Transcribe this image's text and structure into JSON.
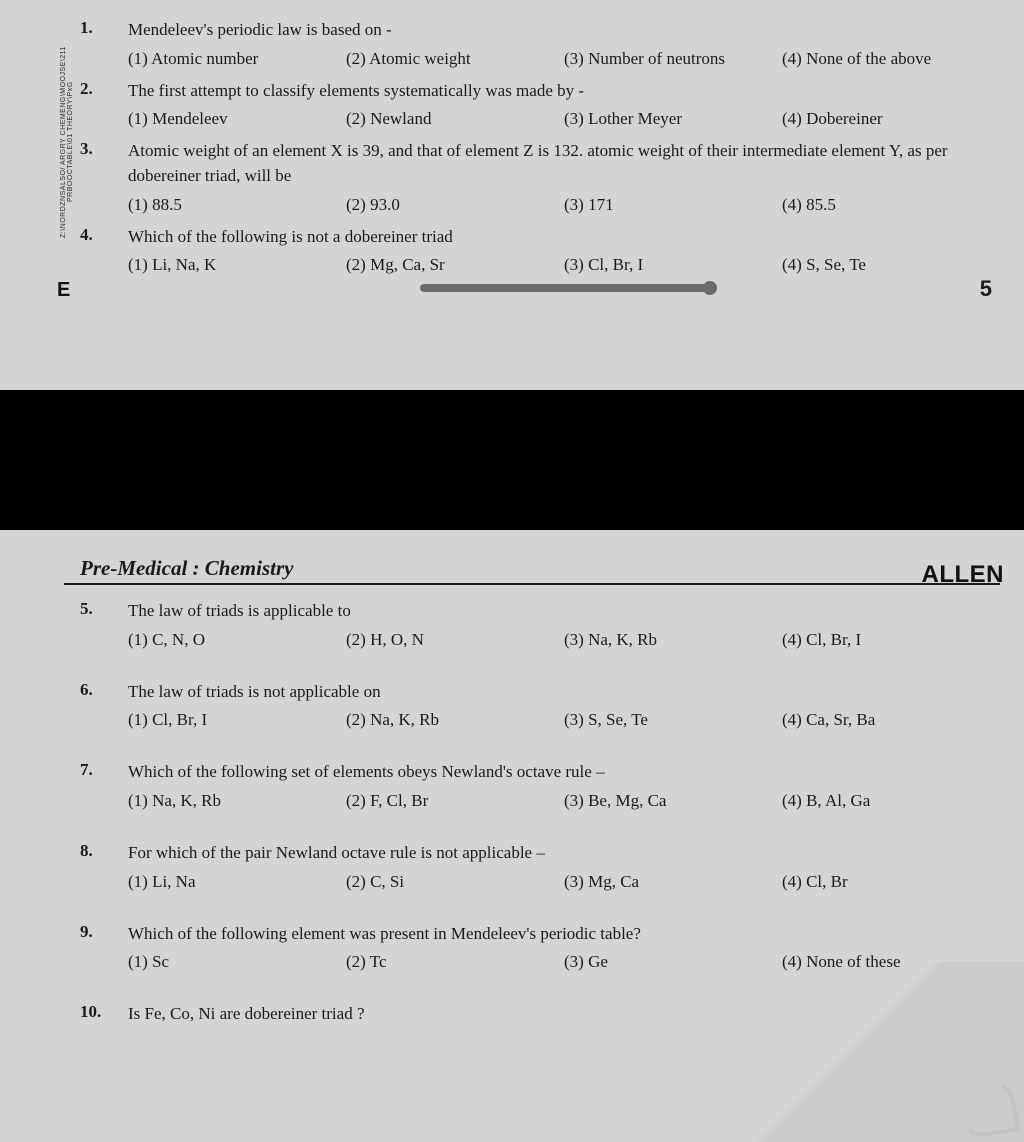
{
  "sideLabel": "Z:\\NORDZNSALSO/ ARGRY CHEMENG\\MOOJSE\\211 PRBOOCTABLE\\01 THEORY\\PxG",
  "letterE": "E",
  "pageNumber5": "5",
  "sectionTitle": "Pre-Medical : Chemistry",
  "brand": "ALLEN",
  "topQuestions": [
    {
      "num": "1.",
      "text": "Mendeleev's periodic law is based on -",
      "options": [
        "(1) Atomic number",
        "(2) Atomic weight",
        "(3) Number of neutrons",
        "(4) None of the above"
      ]
    },
    {
      "num": "2.",
      "text": "The first attempt to classify elements systematically was made by -",
      "options": [
        "(1) Mendeleev",
        "(2) Newland",
        "(3) Lother Meyer",
        "(4) Dobereiner"
      ]
    },
    {
      "num": "3.",
      "text": "Atomic weight of an element X is 39, and that of element Z is 132. atomic weight of their intermediate element Y, as per dobereiner triad, will be",
      "options": [
        "(1) 88.5",
        "(2) 93.0",
        "(3) 171",
        "(4) 85.5"
      ]
    },
    {
      "num": "4.",
      "text": "Which of the following is not a dobereiner triad",
      "options": [
        "(1) Li, Na, K",
        "(2) Mg, Ca, Sr",
        "(3) Cl, Br, I",
        "(4) S, Se, Te"
      ]
    }
  ],
  "bottomQuestions": [
    {
      "num": "5.",
      "text": "The law of triads is applicable to",
      "options": [
        "(1) C, N, O",
        "(2) H, O, N",
        "(3) Na, K, Rb",
        "(4) Cl, Br, I"
      ]
    },
    {
      "num": "6.",
      "text": "The law of triads is not applicable on",
      "options": [
        "(1) Cl, Br, I",
        "(2) Na, K, Rb",
        "(3) S, Se, Te",
        "(4) Ca, Sr, Ba"
      ]
    },
    {
      "num": "7.",
      "text": "Which of the following set of elements obeys Newland's octave rule –",
      "options": [
        "(1) Na, K, Rb",
        "(2) F, Cl, Br",
        "(3) Be, Mg, Ca",
        "(4) B, Al, Ga"
      ]
    },
    {
      "num": "8.",
      "text": "For which of the pair Newland octave rule is not applicable –",
      "options": [
        "(1) Li, Na",
        "(2) C, Si",
        "(3) Mg, Ca",
        "(4) Cl, Br"
      ]
    },
    {
      "num": "9.",
      "text": "Which of the following element was present in Mendeleev's periodic table?",
      "options": [
        "(1) Sc",
        "(2) Tc",
        "(3) Ge",
        "(4) None of these"
      ]
    },
    {
      "num": "10.",
      "text": "Is Fe, Co, Ni are dobereiner triad ?",
      "options": null
    }
  ]
}
